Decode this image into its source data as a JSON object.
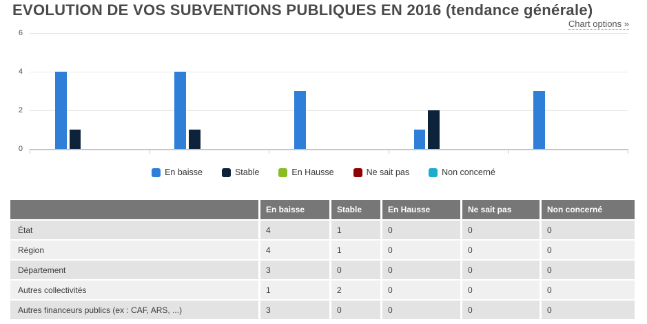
{
  "page": {
    "title": "EVOLUTION DE VOS SUBVENTIONS PUBLIQUES EN 2016 (tendance générale)",
    "chart_options_label": "Chart options »"
  },
  "chart_data": {
    "type": "bar",
    "title": "EVOLUTION DE VOS SUBVENTIONS PUBLIQUES EN 2016 (tendance générale)",
    "categories": [
      "État",
      "Région",
      "Département",
      "Autres collectivités",
      "Autres financeurs publics (ex : CAF, ARS, ...)"
    ],
    "series": [
      {
        "name": "En baisse",
        "color": "#2f7ed8",
        "values": [
          4,
          4,
          3,
          1,
          3
        ]
      },
      {
        "name": "Stable",
        "color": "#0d233a",
        "values": [
          1,
          1,
          0,
          2,
          0
        ]
      },
      {
        "name": "En Hausse",
        "color": "#8bbc21",
        "values": [
          0,
          0,
          0,
          0,
          0
        ]
      },
      {
        "name": "Ne sait pas",
        "color": "#910000",
        "values": [
          0,
          0,
          0,
          0,
          0
        ]
      },
      {
        "name": "Non concerné",
        "color": "#1aadce",
        "values": [
          0,
          0,
          0,
          0,
          0
        ]
      }
    ],
    "ylim": [
      0,
      6
    ],
    "yticks": [
      0,
      2,
      4,
      6
    ],
    "grid": true,
    "legend_position": "bottom",
    "x_tick_labels_visible": false
  },
  "table": {
    "headers": [
      "",
      "En baisse",
      "Stable",
      "En Hausse",
      "Ne sait pas",
      "Non concerné"
    ],
    "rows": [
      {
        "label": "État",
        "values": [
          "4",
          "1",
          "0",
          "0",
          "0"
        ]
      },
      {
        "label": "Région",
        "values": [
          "4",
          "1",
          "0",
          "0",
          "0"
        ]
      },
      {
        "label": "Département",
        "values": [
          "3",
          "0",
          "0",
          "0",
          "0"
        ]
      },
      {
        "label": "Autres collectivités",
        "values": [
          "1",
          "2",
          "0",
          "0",
          "0"
        ]
      },
      {
        "label": "Autres financeurs publics (ex : CAF, ARS, ...)",
        "values": [
          "3",
          "0",
          "0",
          "0",
          "0"
        ]
      }
    ]
  }
}
